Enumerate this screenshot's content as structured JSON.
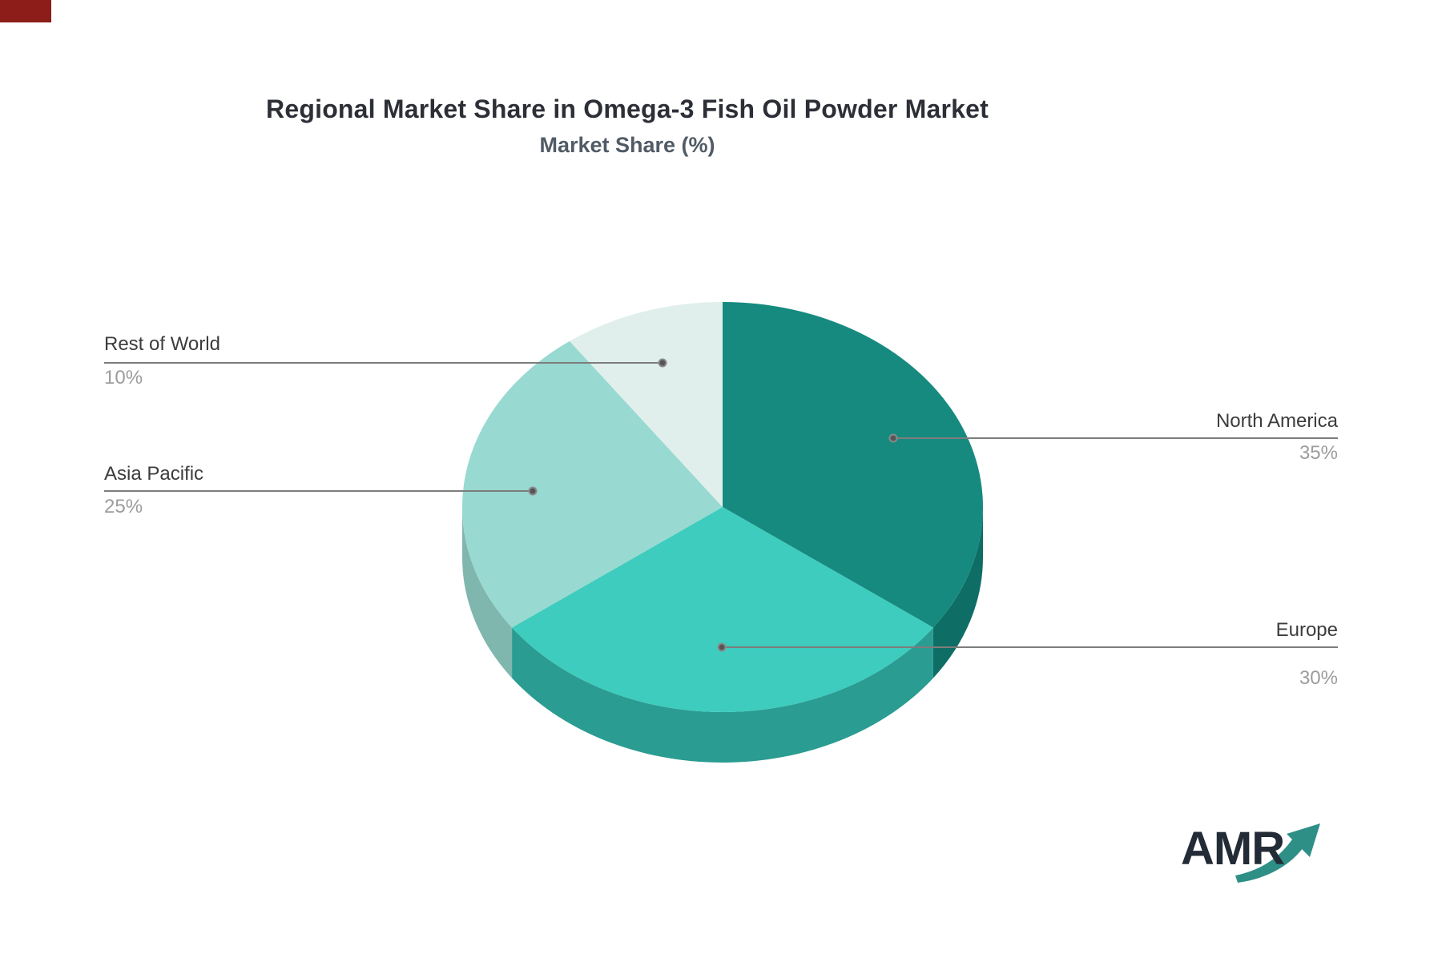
{
  "title": "Regional Market Share in Omega-3 Fish Oil Powder Market",
  "subtitle": "Market Share (%)",
  "chart_data": {
    "type": "pie",
    "style": "3d",
    "title": "Regional Market Share in Omega-3 Fish Oil Powder Market",
    "subtitle": "Market Share (%)",
    "unit": "%",
    "start_angle": "12-oclock-clockwise",
    "legend_position": "none",
    "slices": [
      {
        "label": "North America",
        "value": 35,
        "display": "35%",
        "color": "#178a80",
        "side_color": "#0e6e66"
      },
      {
        "label": "Europe",
        "value": 30,
        "display": "30%",
        "color": "#3dccbe",
        "side_color": "#2a9c91"
      },
      {
        "label": "Asia Pacific",
        "value": 25,
        "display": "25%",
        "color": "#98d9d1",
        "side_color": "#7fb7af"
      },
      {
        "label": "Rest of World",
        "value": 10,
        "display": "10%",
        "color": "#e0efec",
        "side_color": "#c8e0dc"
      }
    ],
    "label_style": {
      "name_color": "#3c3c3c",
      "value_color": "#9c9c9c",
      "line_color": "#7d7d7d"
    }
  },
  "callouts": {
    "rest_of_world": {
      "label": "Rest of World",
      "value": "10%"
    },
    "asia_pacific": {
      "label": "Asia Pacific",
      "value": "25%"
    },
    "north_america": {
      "label": "North America",
      "value": "35%"
    },
    "europe": {
      "label": "Europe",
      "value": "30%"
    }
  },
  "logo": {
    "text": "AMR",
    "color": "#232c36",
    "arrow_color": "#2e8f87"
  },
  "accents": {
    "top_left_mark": "#8c1d18",
    "background": "#ffffff"
  }
}
